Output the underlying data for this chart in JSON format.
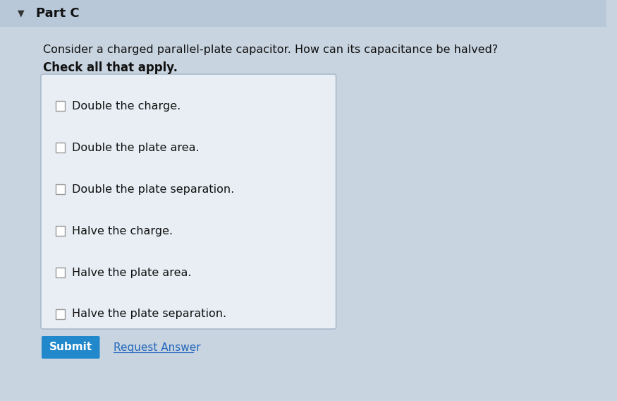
{
  "background_color": "#c8d4e0",
  "header_bg": "#b8c8d8",
  "title": "Part C",
  "title_arrow": "▼",
  "question": "Consider a charged parallel-plate capacitor. How can its capacitance be halved?",
  "instruction": "Check all that apply.",
  "options": [
    "Double the charge.",
    "Double the plate area.",
    "Double the plate separation.",
    "Halve the charge.",
    "Halve the plate area.",
    "Halve the plate separation."
  ],
  "box_bg": "#e8eef4",
  "box_border": "#aabbcc",
  "checkbox_color": "#ffffff",
  "checkbox_border": "#999999",
  "submit_bg": "#2288cc",
  "submit_text": "Submit",
  "submit_text_color": "#ffffff",
  "request_answer_text": "Request Answer",
  "request_answer_color": "#2266bb",
  "question_fontsize": 11.5,
  "instruction_fontsize": 12,
  "option_fontsize": 11.5,
  "title_fontsize": 13
}
